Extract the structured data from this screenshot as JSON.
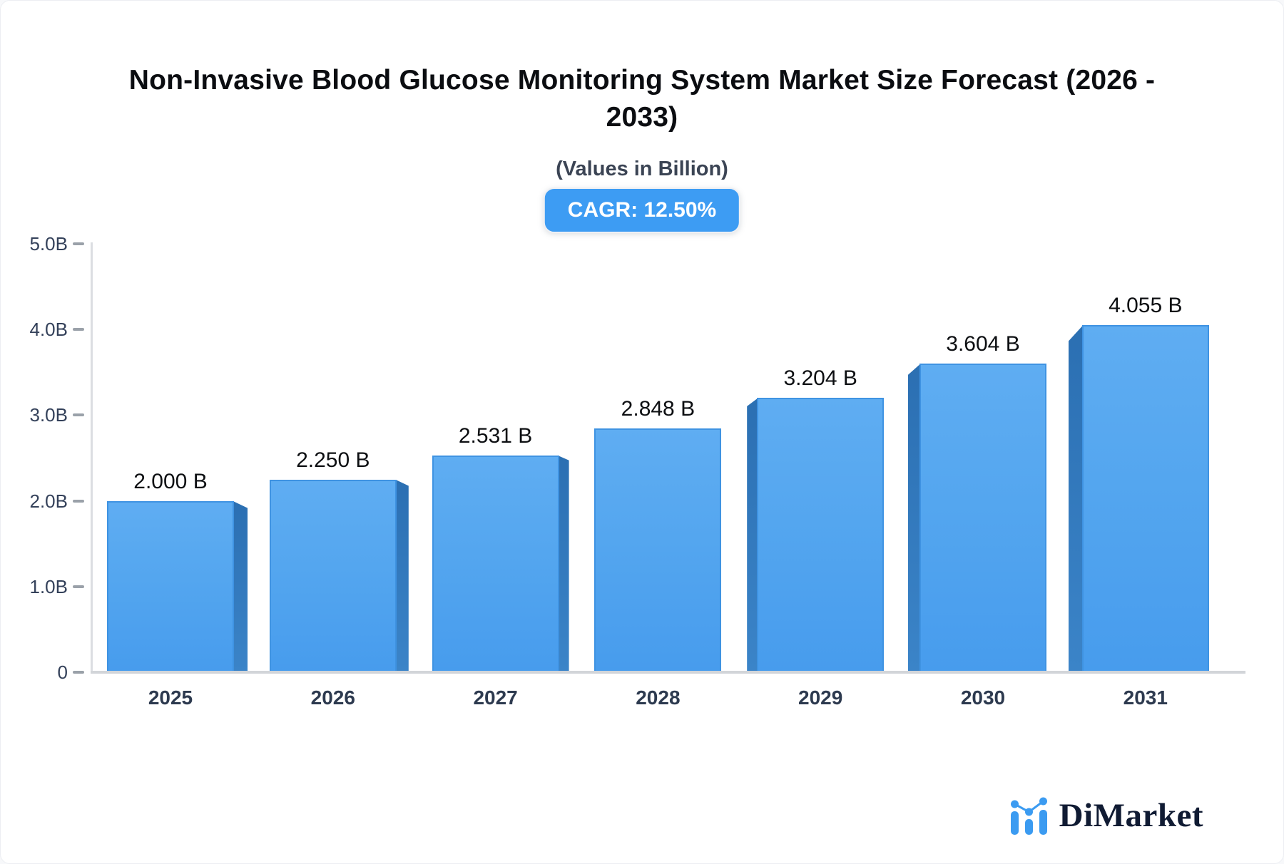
{
  "header": {
    "title_line1": "Non-Invasive Blood Glucose Monitoring System Market Size Forecast (2026 -",
    "title_line2": "2033)",
    "subtitle": "(Values in Billion)",
    "cagr_badge": "CAGR: 12.50%"
  },
  "chart_data": {
    "type": "bar",
    "title": "Non-Invasive Blood Glucose Monitoring System Market Size Forecast (2026 - 2033)",
    "subtitle": "(Values in Billion)",
    "cagr": "12.50%",
    "categories": [
      "2025",
      "2026",
      "2027",
      "2028",
      "2029",
      "2030",
      "2031"
    ],
    "values": [
      2.0,
      2.25,
      2.531,
      2.848,
      3.204,
      3.604,
      4.055
    ],
    "value_labels": [
      "2.000 B",
      "2.250 B",
      "2.531 B",
      "2.848 B",
      "3.204 B",
      "3.604 B",
      "4.055 B"
    ],
    "ylim": [
      0,
      5
    ],
    "yticks": [
      {
        "label": "0",
        "value": 0
      },
      {
        "label": "1.0B",
        "value": 1
      },
      {
        "label": "2.0B",
        "value": 2
      },
      {
        "label": "3.0B",
        "value": 3
      },
      {
        "label": "4.0B",
        "value": 4
      },
      {
        "label": "5.0B",
        "value": 5
      }
    ],
    "grid": false,
    "legend": "none",
    "colors": {
      "bar_face": "#4BA0EE",
      "bar_face_light": "#5FADF2",
      "bar_border": "#3F93E2",
      "bar_side": "#2E74B6",
      "badge_bg": "#3D9CF3",
      "axis_line": "#D2D5D9",
      "tick": "#9AA1A9",
      "label_text": "#2D3A4F"
    }
  },
  "footer": {
    "logo_text": "DiMarket",
    "logo_icon": "bar-line-chart-icon"
  }
}
